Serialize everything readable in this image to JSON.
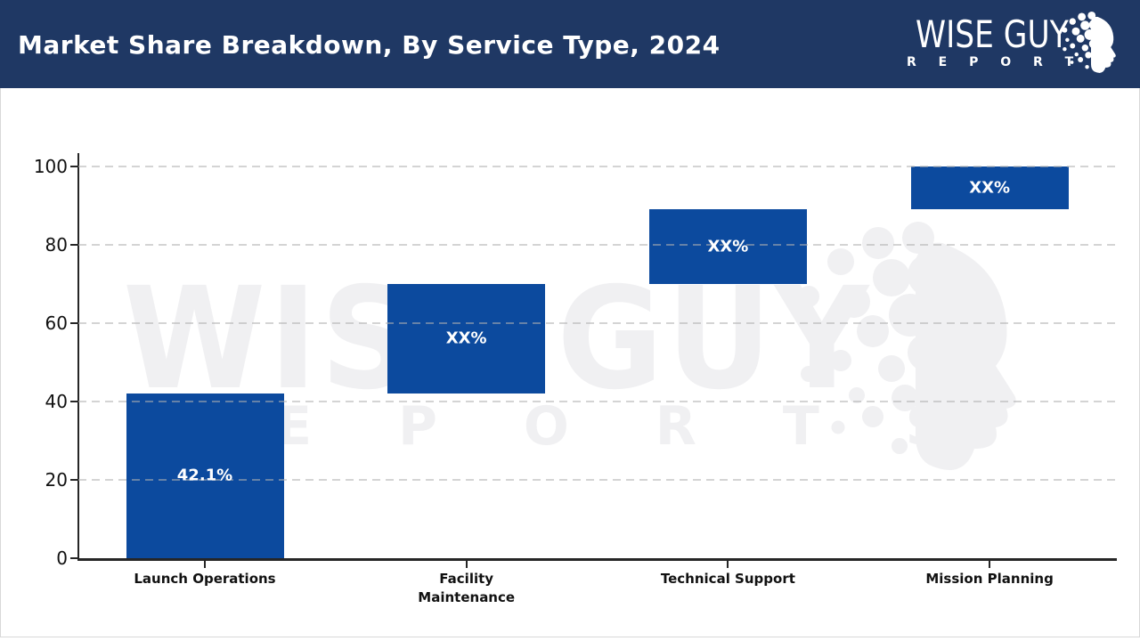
{
  "header": {
    "title": "Market Share Breakdown, By Service Type, 2024",
    "logo": {
      "line1": "WISE GUY",
      "line2": "R E P O R T S"
    }
  },
  "watermark": {
    "line1": "WISE GUY",
    "line2": "R E P O R T S"
  },
  "chart_data": {
    "type": "bar",
    "subtype": "waterfall",
    "title": "Market Share Breakdown, By Service Type, 2024",
    "categories": [
      "Launch Operations",
      "Facility Maintenance",
      "Technical Support",
      "Mission Planning"
    ],
    "category_lines": [
      [
        "Launch Operations"
      ],
      [
        "Facility",
        "Maintenance"
      ],
      [
        "Technical Support"
      ],
      [
        "Mission Planning"
      ]
    ],
    "segments": [
      {
        "start": 0,
        "end": 42.1,
        "label": "42.1%"
      },
      {
        "start": 42.1,
        "end": 70.0,
        "label": "XX%"
      },
      {
        "start": 70.0,
        "end": 89.1,
        "label": "XX%"
      },
      {
        "start": 89.1,
        "end": 100.0,
        "label": "XX%"
      }
    ],
    "yticks": [
      0,
      20,
      40,
      60,
      80,
      100
    ],
    "ylim": [
      0,
      103
    ],
    "grid": "horizontal-dashed",
    "legend": "none",
    "xlabel": "",
    "ylabel": ""
  },
  "colors": {
    "header_bg": "#1f3864",
    "bar_fill": "#0c4a9e",
    "bar_label": "#ffffff",
    "grid_color": "#d9d9d9",
    "axis_color": "#262626",
    "watermark_color": "#f0f0f2",
    "title_color": "#ffffff"
  }
}
